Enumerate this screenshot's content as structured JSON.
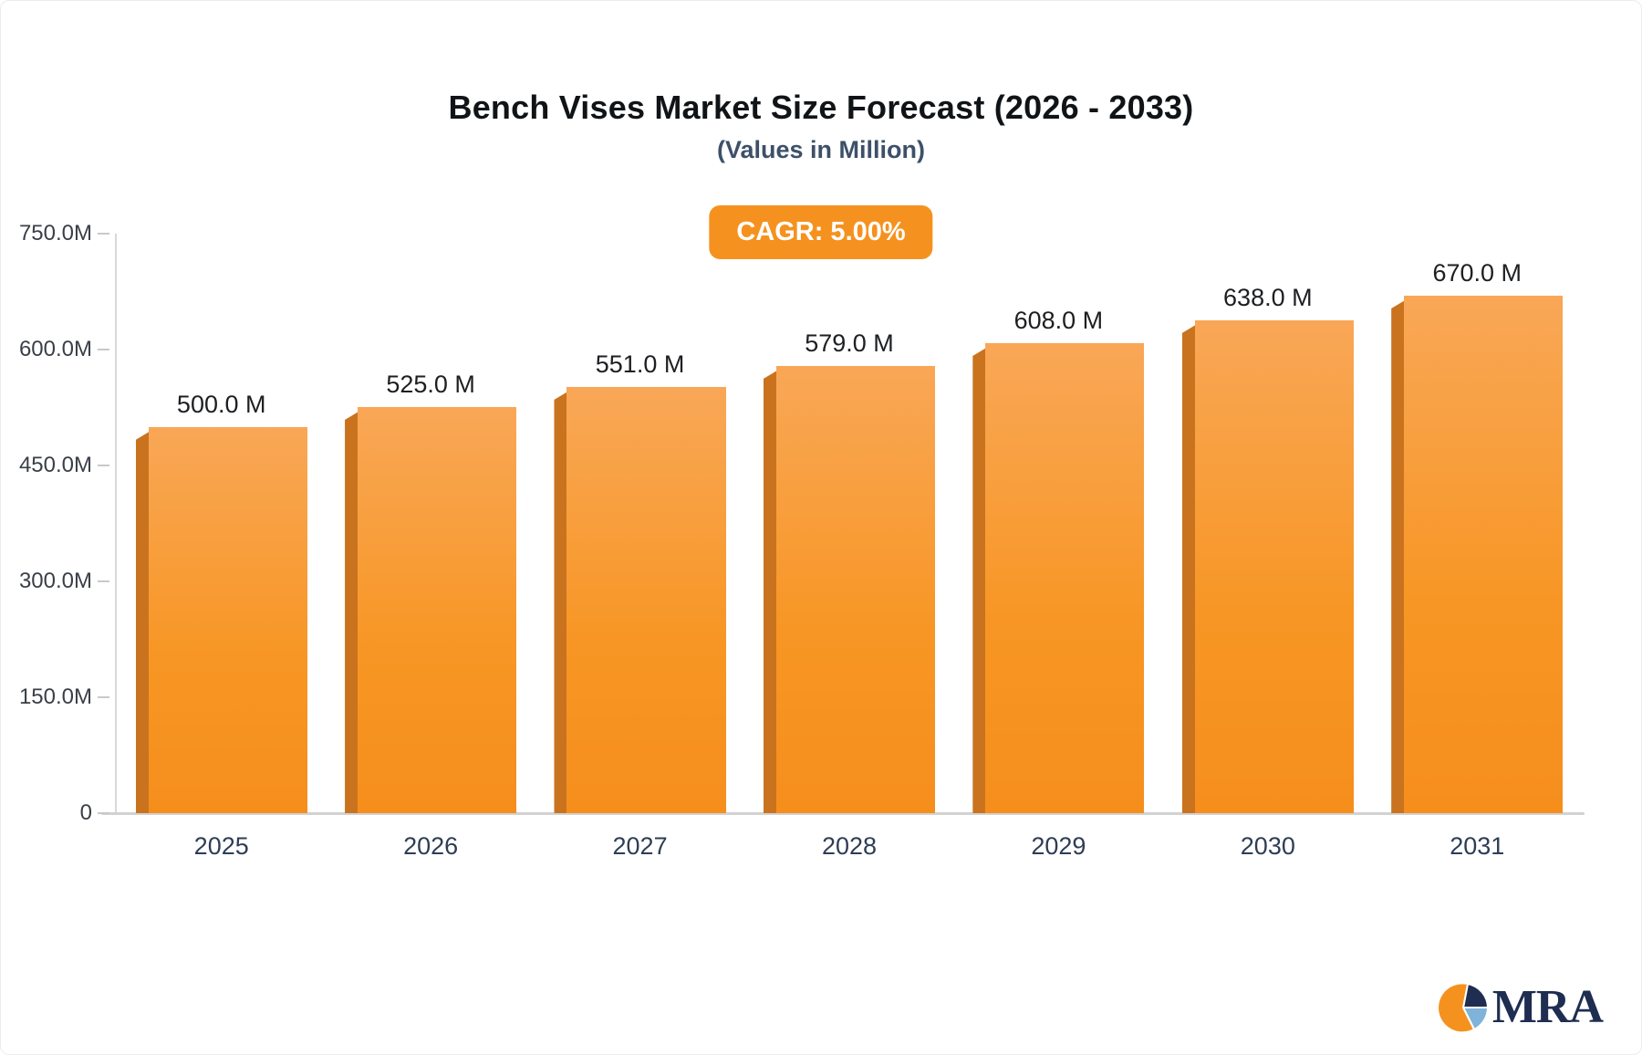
{
  "header": {
    "title": "Bench Vises Market Size Forecast (2026 - 2033)",
    "subtitle": "(Values in Million)"
  },
  "badge": {
    "label": "CAGR: 5.00%",
    "bg_color": "#F5921F",
    "text_color": "#FFFFFF"
  },
  "chart_data": {
    "type": "bar",
    "title": "Bench Vises Market Size Forecast (2026 - 2033)",
    "subtitle": "(Values in Million)",
    "categories": [
      "2025",
      "2026",
      "2027",
      "2028",
      "2029",
      "2030",
      "2031"
    ],
    "values": [
      500,
      525,
      551,
      579,
      608,
      638,
      670
    ],
    "value_labels": [
      "500.0 M",
      "525.0 M",
      "551.0 M",
      "579.0 M",
      "608.0 M",
      "638.0 M",
      "670.0 M"
    ],
    "xlabel": "",
    "ylabel": "",
    "ylim": [
      0,
      750
    ],
    "yticks": [
      {
        "value": 0,
        "label": "0"
      },
      {
        "value": 150,
        "label": "150.0M"
      },
      {
        "value": 300,
        "label": "300.0M"
      },
      {
        "value": 450,
        "label": "450.0M"
      },
      {
        "value": 600,
        "label": "600.0M"
      },
      {
        "value": 750,
        "label": "750.0M"
      }
    ],
    "grid": false,
    "legend_position": "none",
    "bar_color_top": "#F9A757",
    "bar_color_bottom": "#F68E1C",
    "bar_edge_color": "#C9731F"
  },
  "logo": {
    "text": "MRA",
    "navy": "#1e2d50",
    "orange": "#F5921F",
    "light_blue": "#7FB3D9"
  }
}
